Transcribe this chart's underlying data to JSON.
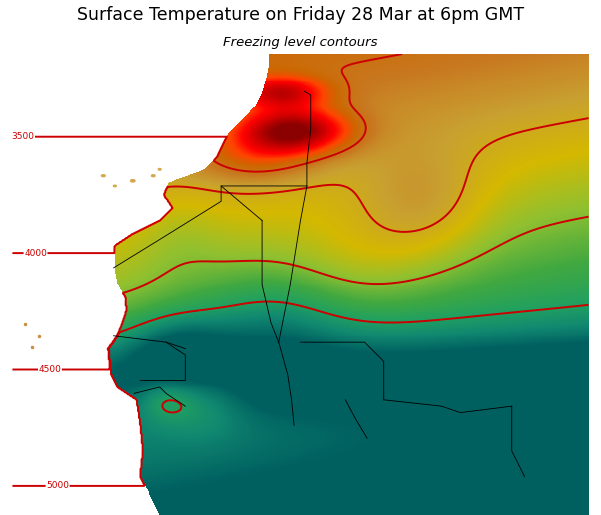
{
  "title": "Surface Temperature on Friday 28 Mar at 6pm GMT",
  "subtitle": "Freezing level contours",
  "title_fontsize": 12.5,
  "subtitle_fontsize": 9.5,
  "figsize": [
    6.01,
    5.15
  ],
  "dpi": 100,
  "ocean_color": "#b8cfe0",
  "white_bg": "#ffffff",
  "map_bounds": [
    -25.0,
    20.0,
    2.0,
    38.0
  ],
  "contour_color": "#cc0000",
  "contour_levels": [
    3500,
    4000,
    4500,
    5000
  ],
  "contour_label_fontsize": 6.5,
  "contour_linewidth": 1.4,
  "border_linewidth": 0.6
}
